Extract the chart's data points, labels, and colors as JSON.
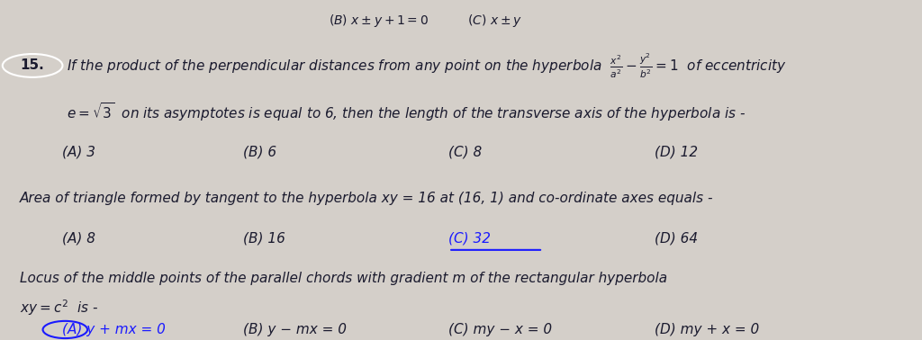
{
  "bg_color": "#d4cfc9",
  "text_color": "#1a1a2e",
  "blue_color": "#1a1aff",
  "q15_number": "15.",
  "q15_main": "If the product of the perpendicular distances from any point on the hyperbola  $\\frac{x^2}{a^2} - \\frac{y^2}{b^2} = 1$  of eccentricity",
  "q15_line2": "$e = \\sqrt{3}$  on its asymptotes is equal to 6, then the length of the transverse axis of the hyperbola is -",
  "q15_A": "(A) 3",
  "q15_B": "(B) 6",
  "q15_C": "(C) 8",
  "q15_D": "(D) 12",
  "q_area_main": "Area of triangle formed by tangent to the hyperbola xy = 16 at (16, 1) and co-ordinate axes equals -",
  "q_area_A": "(A) 8",
  "q_area_B": "(B) 16",
  "q_area_C": "(C) 32",
  "q_area_D": "(D) 64",
  "q_locus_main": "Locus of the middle points of the parallel chords with gradient m of the rectangular hyperbola",
  "q_locus_eq": "$xy = c^2$  is -",
  "q_locus_A": "(A) y + mx = 0",
  "q_locus_B": "(B) y − mx = 0",
  "q_locus_C": "(C) my − x = 0",
  "q_locus_D": "(D) my + x = 0",
  "font_size_main": 11,
  "font_size_options": 11
}
